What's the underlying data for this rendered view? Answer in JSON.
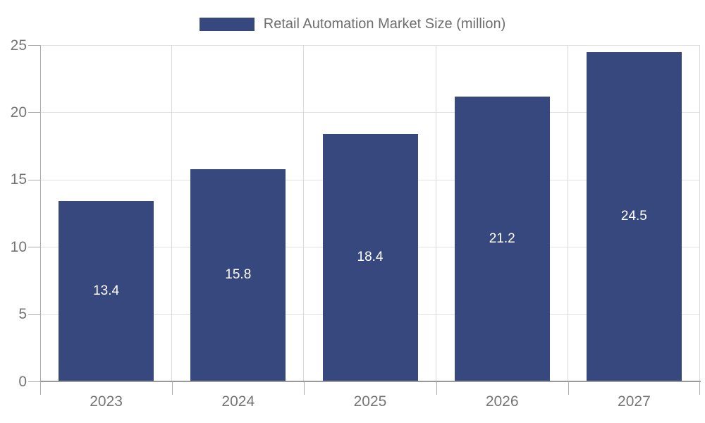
{
  "chart_data": {
    "type": "bar",
    "title": "",
    "legend": "Retail Automation Market Size (million)",
    "legend_position": "top-center",
    "categories": [
      "2023",
      "2024",
      "2025",
      "2026",
      "2027"
    ],
    "values": [
      13.4,
      15.8,
      18.4,
      21.2,
      24.5
    ],
    "value_labels": [
      "13.4",
      "15.8",
      "18.4",
      "21.2",
      "24.5"
    ],
    "xlabel": "",
    "ylabel": "",
    "ylim": [
      0,
      25
    ],
    "yticks": [
      0,
      5,
      10,
      15,
      20,
      25
    ],
    "grid": true,
    "colors": {
      "bar": "#36487e",
      "value_label": "#ffffff",
      "axis_text": "#757575",
      "legend_text": "#6e6e6e",
      "grid_horizontal": "#e2e2e2",
      "grid_vertical": "#d9d9d9",
      "axis_line": "#999999",
      "tick": "#ababab",
      "background": "#ffffff"
    }
  }
}
